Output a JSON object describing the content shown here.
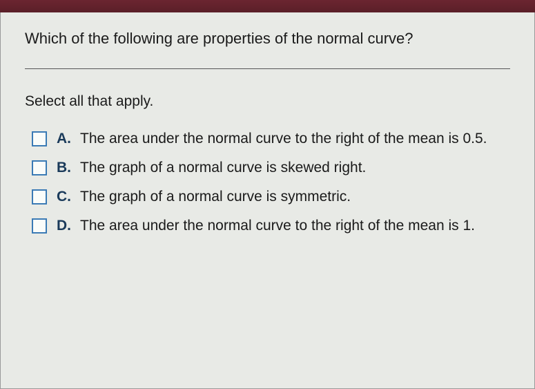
{
  "question": {
    "prompt": "Which of the following are properties of the normal curve?",
    "instruction": "Select all that apply."
  },
  "options": [
    {
      "letter": "A.",
      "text": "The area under the normal curve to the right of the mean is 0.5."
    },
    {
      "letter": "B.",
      "text": "The graph of a normal curve is skewed right."
    },
    {
      "letter": "C.",
      "text": "The graph of a normal curve is symmetric."
    },
    {
      "letter": "D.",
      "text": "The area under the normal curve to the right of the mean is 1."
    }
  ],
  "colors": {
    "topbar": "#6b2530",
    "background": "#e8eae6",
    "checkbox_border": "#3a7ab5",
    "text_primary": "#1a1a1a",
    "letter_color": "#1a3a5a",
    "divider": "#555555"
  },
  "typography": {
    "question_fontsize": 22,
    "instruction_fontsize": 21,
    "option_fontsize": 21,
    "font_family": "Arial"
  }
}
